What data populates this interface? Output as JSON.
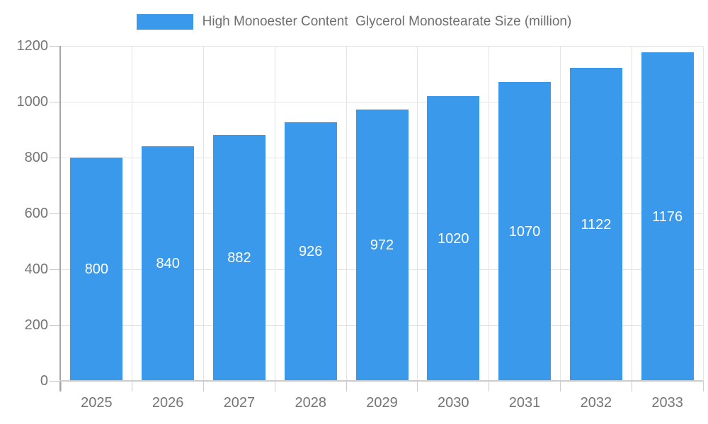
{
  "legend": {
    "label": "High Monoester Content  Glycerol Monostearate Size (million)",
    "swatch_color": "#3b99ec"
  },
  "chart_data": {
    "type": "bar",
    "title": "High Monoester Content  Glycerol Monostearate Size (million)",
    "series_name": "High Monoester Content  Glycerol Monostearate Size (million)",
    "categories": [
      "2025",
      "2026",
      "2027",
      "2028",
      "2029",
      "2030",
      "2031",
      "2032",
      "2033"
    ],
    "values": [
      800,
      840,
      882,
      926,
      972,
      1020,
      1070,
      1122,
      1176
    ],
    "xlabel": "",
    "ylabel": "",
    "ylim": [
      0,
      1200
    ],
    "yticks": [
      0,
      200,
      400,
      600,
      800,
      1000,
      1200
    ],
    "grid": true,
    "legend_position": "top",
    "bar_color": "#3b99ec",
    "value_label_color": "#ffffff",
    "axis_label_color": "#757575",
    "gridline_color": "#e4e4e4"
  }
}
